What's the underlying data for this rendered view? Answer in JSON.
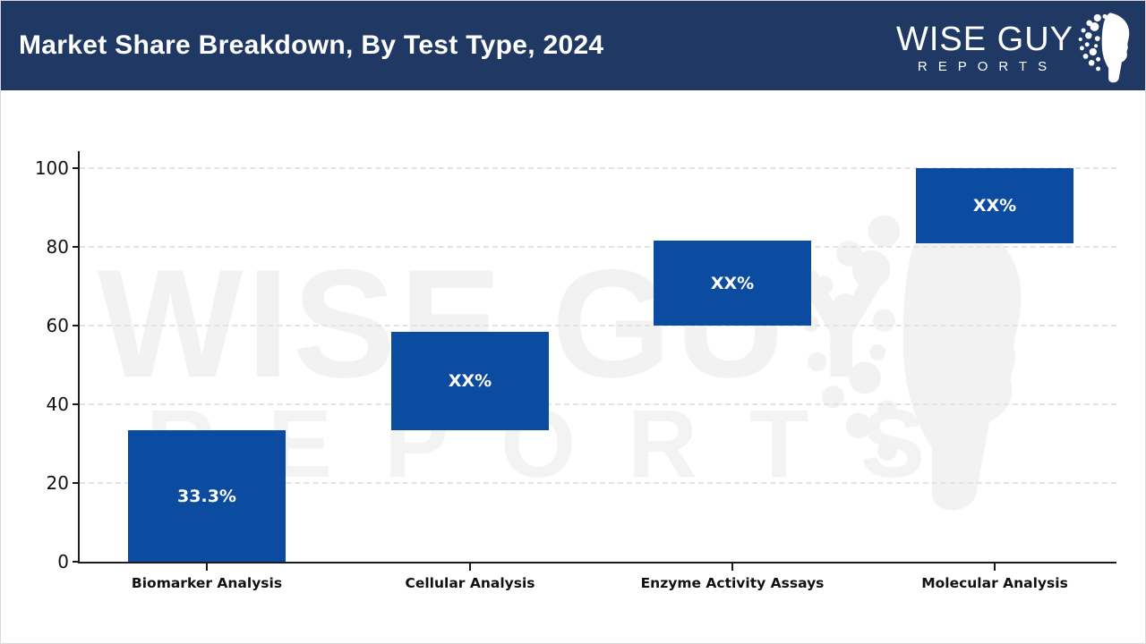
{
  "header": {
    "title": "Market Share Breakdown, By Test Type, 2024",
    "bg_color": "#203864",
    "logo": {
      "line1": "WISE GUY",
      "line2": "REPORTS"
    }
  },
  "watermark": {
    "line1": "WISE GUY",
    "line2": "REPORTS"
  },
  "chart_data": {
    "type": "bar",
    "variant": "waterfall",
    "title": "Market Share Breakdown, By Test Type, 2024",
    "categories": [
      "Biomarker Analysis",
      "Cellular Analysis",
      "Enzyme Activity Assays",
      "Molecular Analysis"
    ],
    "bars": [
      {
        "category": "Biomarker Analysis",
        "from": 0,
        "to": 33.3,
        "label": "33.3%"
      },
      {
        "category": "Cellular Analysis",
        "from": 33.3,
        "to": 58.5,
        "label": "XX%"
      },
      {
        "category": "Enzyme Activity Assays",
        "from": 60,
        "to": 81.5,
        "label": "XX%"
      },
      {
        "category": "Molecular Analysis",
        "from": 81,
        "to": 100,
        "label": "XX%"
      }
    ],
    "xlabel": "",
    "ylabel": "",
    "ylim": [
      0,
      100
    ],
    "yticks": [
      0,
      20,
      40,
      60,
      80,
      100
    ],
    "grid": "horizontal-dashed",
    "legend": "none",
    "bar_color": "#0c4ca0",
    "bar_label_color": "#ffffff",
    "header_color": "#203864",
    "gridline_color": "#e3e3e3"
  }
}
